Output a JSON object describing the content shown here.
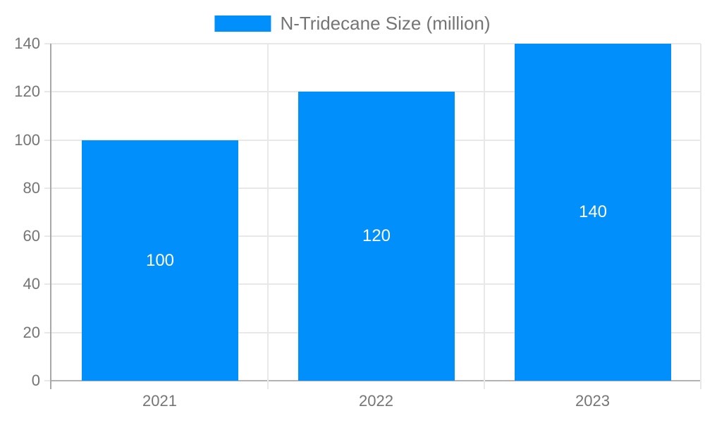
{
  "chart_data": {
    "type": "bar",
    "title": "N-Tridecane Size (million)",
    "legend": {
      "label": "N-Tridecane Size (million)",
      "position": "top"
    },
    "categories": [
      "2021",
      "2022",
      "2023"
    ],
    "series": [
      {
        "name": "N-Tridecane Size (million)",
        "values": [
          100,
          120,
          140
        ]
      }
    ],
    "bar_value_labels": [
      "100",
      "120",
      "140"
    ],
    "xlabel": "",
    "ylabel": "",
    "ylim": [
      0,
      140
    ],
    "y_ticks": [
      0,
      20,
      40,
      60,
      80,
      100,
      120,
      140
    ],
    "grid": true,
    "colors": {
      "bar": "#008FFB",
      "bar_label_text": "#ffffff",
      "axis_text": "#757575",
      "legend_text": "#757575",
      "gridline": "#e8e8e8",
      "axis_line": "#a8a8a8",
      "baseline": "#b3b3b3",
      "background": "#ffffff"
    }
  }
}
